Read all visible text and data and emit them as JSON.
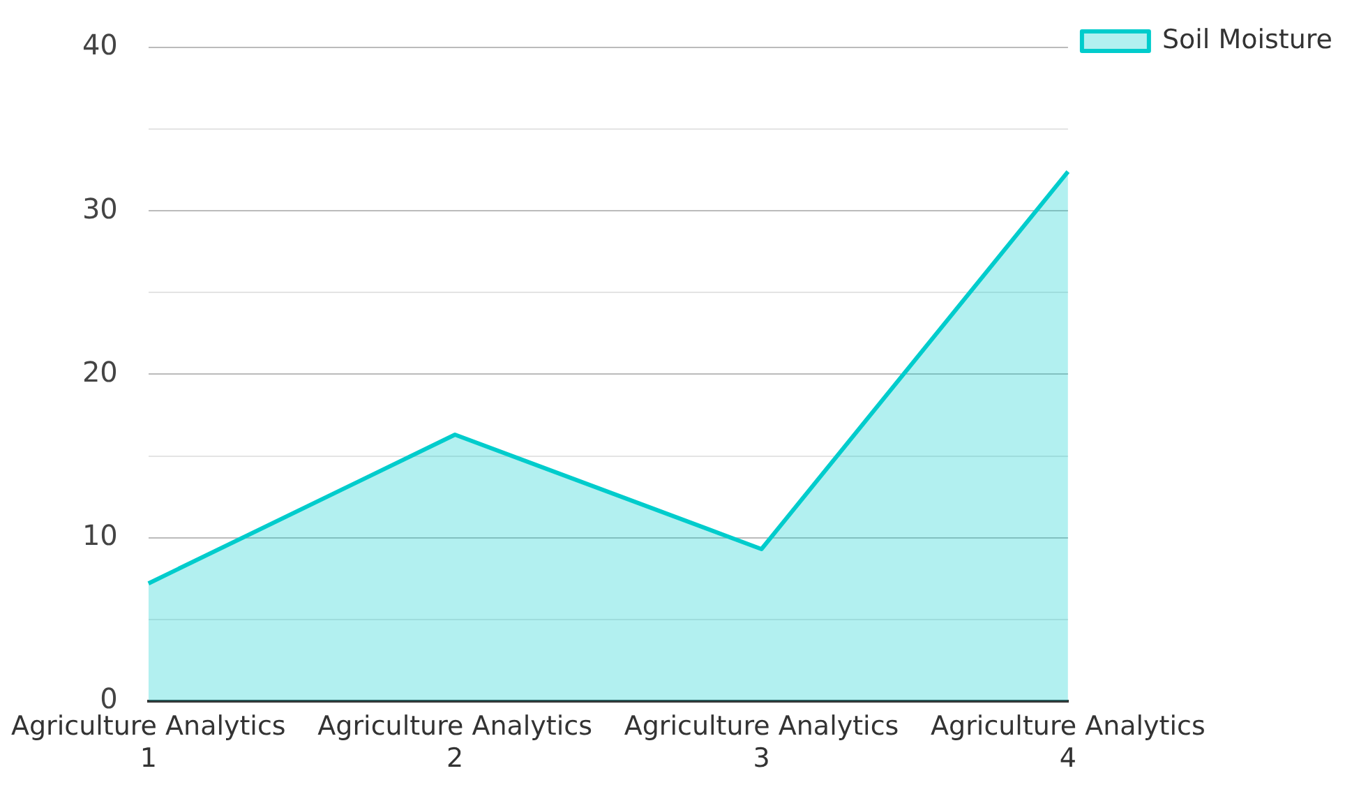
{
  "chart_data": {
    "type": "area",
    "categories": [
      "Agriculture Analytics 1",
      "Agriculture Analytics 2",
      "Agriculture Analytics 3",
      "Agriculture Analytics 4"
    ],
    "series": [
      {
        "name": "Soil Moisture",
        "color": "#00cccc",
        "values": [
          7.2,
          16.3,
          9.3,
          32.4
        ]
      }
    ],
    "ylim": [
      0,
      40
    ],
    "yticks": [
      0,
      {
        "value": 5,
        "label": null
      },
      10,
      {
        "value": 15,
        "label": null
      },
      20,
      {
        "value": 25,
        "label": null
      },
      30,
      {
        "value": 35,
        "label": null
      },
      40
    ],
    "grid": "y",
    "legend": "top right"
  }
}
